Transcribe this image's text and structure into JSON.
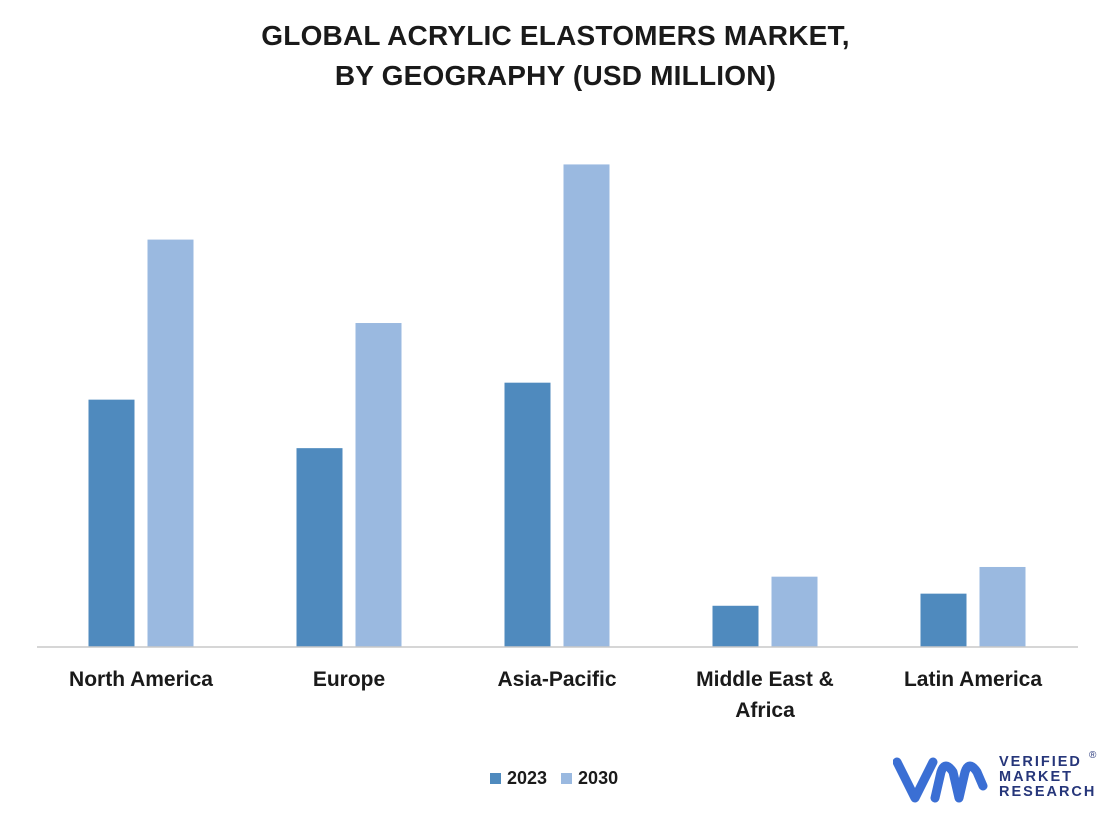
{
  "chart_data": {
    "type": "bar",
    "title_lines": [
      "GLOBAL ACRYLIC ELASTOMERS MARKET,",
      "BY GEOGRAPHY (USD MILLION)"
    ],
    "categories": [
      [
        "North America"
      ],
      [
        "Europe"
      ],
      [
        "Asia-Pacific"
      ],
      [
        "Middle East &",
        "Africa"
      ],
      [
        "Latin America"
      ]
    ],
    "series": [
      {
        "name": "2023",
        "color": "#4f8abe",
        "values": [
          51,
          41,
          54.5,
          8.5,
          11
        ]
      },
      {
        "name": "2030",
        "color": "#9ab9e0",
        "values": [
          84,
          66.8,
          99.5,
          14.5,
          16.5
        ]
      }
    ],
    "ylim": [
      0,
      100
    ],
    "grid": false,
    "legend_position": "bottom-center"
  },
  "logo": {
    "line1": "VERIFIED",
    "line2": "MARKET",
    "line3": "RESEARCH",
    "registered": "®",
    "mark_color": "#3b6fd4"
  }
}
